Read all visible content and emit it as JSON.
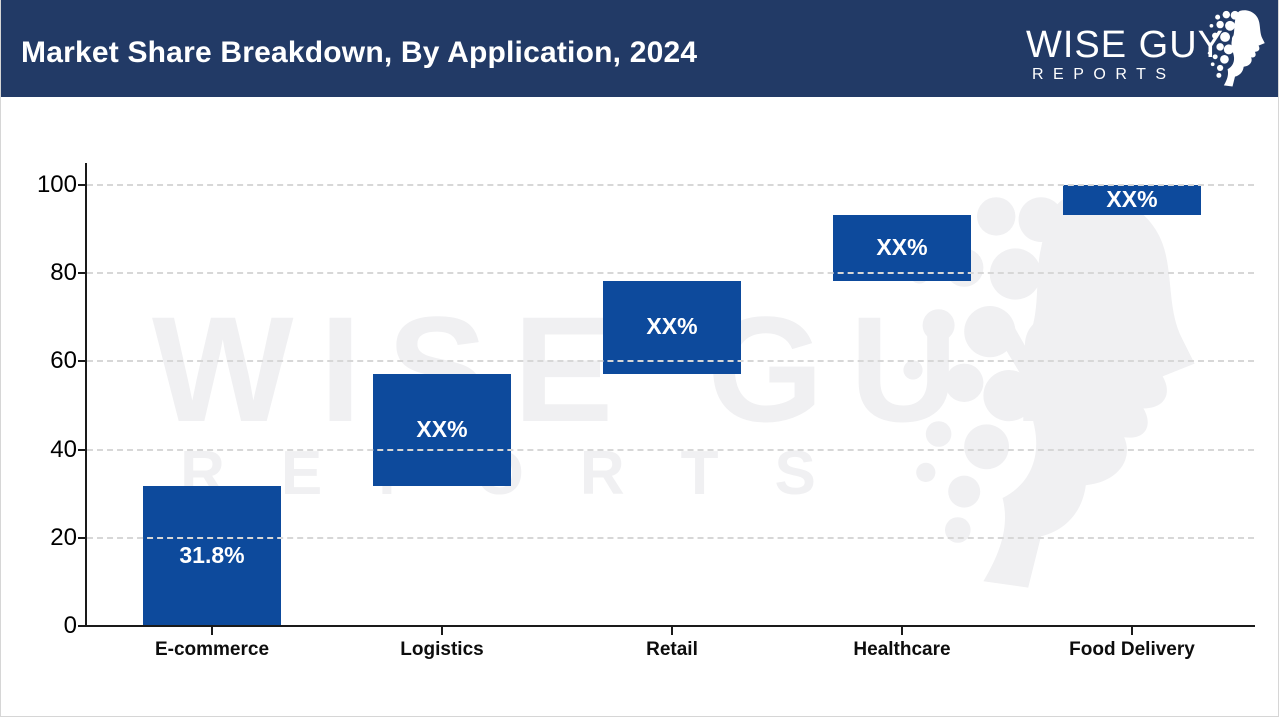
{
  "header": {
    "title": "Market Share Breakdown, By Application, 2024"
  },
  "logo": {
    "line1": "WISE GUY",
    "line2": "REPORTS",
    "head_icon": "dotted-head-profile"
  },
  "watermark": {
    "line1": "WISE GUY",
    "line2": "REPORTS",
    "head_icon": "dotted-head-profile"
  },
  "colors": {
    "header_bg": "#223a66",
    "bar": "#0d4a9c",
    "bar_label": "#ffffff",
    "gridline": "#d7d7d7",
    "axis": "#1a1a1a",
    "watermark": "#f0f0f2"
  },
  "chart_data": {
    "type": "bar",
    "subtype": "waterfall",
    "title": "Market Share Breakdown, By Application, 2024",
    "xlabel": "",
    "ylabel": "",
    "categories": [
      "E-commerce",
      "Logistics",
      "Retail",
      "Healthcare",
      "Food Delivery"
    ],
    "segments": [
      {
        "category": "E-commerce",
        "start": 0.0,
        "end": 31.8,
        "value": 31.8,
        "label": "31.8%"
      },
      {
        "category": "Logistics",
        "start": 31.8,
        "end": 57.2,
        "value": 25.4,
        "label": "XX%"
      },
      {
        "category": "Retail",
        "start": 57.2,
        "end": 78.2,
        "value": 21.0,
        "label": "XX%"
      },
      {
        "category": "Healthcare",
        "start": 78.2,
        "end": 93.2,
        "value": 15.0,
        "label": "XX%"
      },
      {
        "category": "Food Delivery",
        "start": 93.2,
        "end": 100.0,
        "value": 6.8,
        "label": "XX%"
      }
    ],
    "yticks": [
      0,
      20,
      40,
      60,
      80,
      100
    ],
    "ylim": [
      0,
      105
    ],
    "grid": "horizontal-dashed",
    "legend": "none"
  }
}
